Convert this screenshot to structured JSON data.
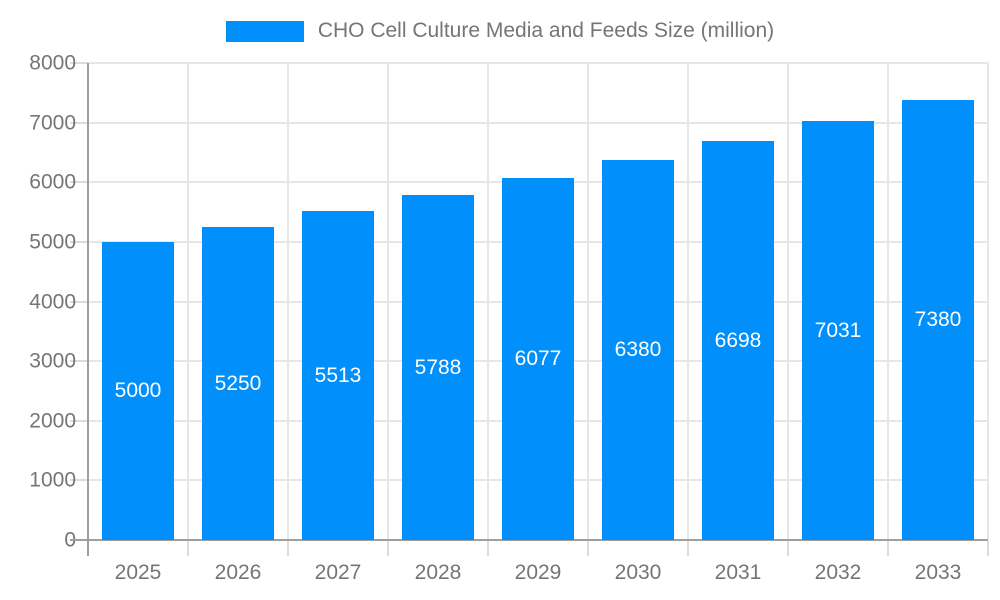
{
  "chart_data": {
    "type": "bar",
    "title": "CHO Cell Culture Media and Feeds Size (million)",
    "categories": [
      "2025",
      "2026",
      "2027",
      "2028",
      "2029",
      "2030",
      "2031",
      "2032",
      "2033"
    ],
    "values": [
      5000,
      5250,
      5513,
      5788,
      6077,
      6380,
      6698,
      7031,
      7380
    ],
    "bar_value_labels": [
      "5000",
      "5250",
      "5513",
      "5788",
      "6077",
      "6380",
      "6698",
      "7031",
      "7380"
    ],
    "ytick_labels": [
      "0",
      "1000",
      "2000",
      "3000",
      "4000",
      "5000",
      "6000",
      "7000",
      "8000"
    ],
    "ylim": [
      0,
      8000
    ],
    "ytick_step": 1000,
    "grid": "on",
    "legend_position": "top-center",
    "colors": {
      "bar": "#008FFB",
      "bar_label": "#ffffff",
      "axis_text": "#757575",
      "grid_line": "#e6e6e6",
      "tick_line": "#dcdcdc",
      "axis_line": "#9e9e9e",
      "background": "#ffffff"
    }
  }
}
